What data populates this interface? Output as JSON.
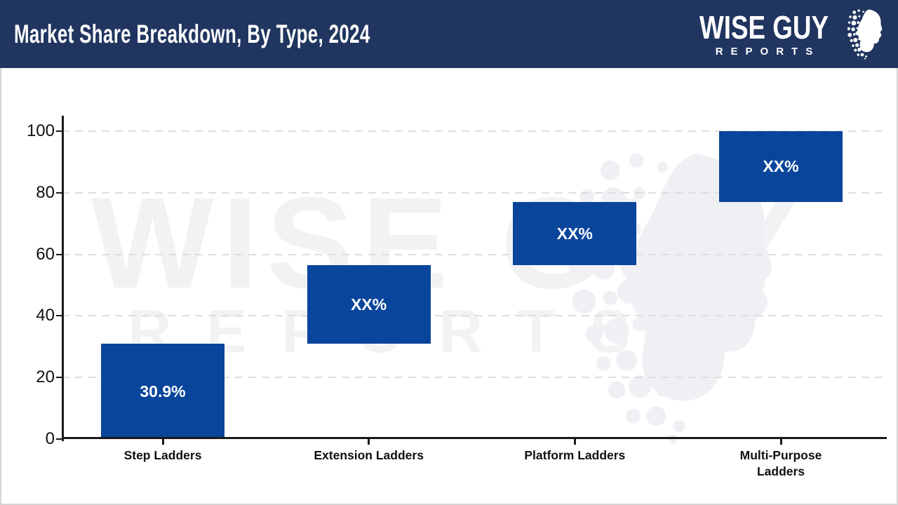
{
  "header": {
    "title": "Market Share Breakdown, By Type, 2024",
    "logo": {
      "line1": "WISE GUY",
      "line2": "REPORTS"
    }
  },
  "watermark": {
    "line1": "WISE GUY",
    "line2": "REPORTS"
  },
  "chart_data": {
    "type": "bar",
    "subtype": "waterfall",
    "title": "Market Share Breakdown, By Type, 2024",
    "categories": [
      "Step Ladders",
      "Extension Ladders",
      "Platform Ladders",
      "Multi-Purpose Ladders"
    ],
    "segments": [
      {
        "category": "Step Ladders",
        "start": 0,
        "end": 30.9,
        "value": 30.9,
        "label": "30.9%"
      },
      {
        "category": "Extension Ladders",
        "start": 30.9,
        "end": 56.4,
        "value": 25.5,
        "label": "XX%"
      },
      {
        "category": "Platform Ladders",
        "start": 56.4,
        "end": 76.9,
        "value": 20.5,
        "label": "XX%"
      },
      {
        "category": "Multi-Purpose Ladders",
        "start": 76.9,
        "end": 100,
        "value": 23.1,
        "label": "XX%"
      }
    ],
    "xlabel": "",
    "ylabel": "",
    "yticks": [
      0,
      20,
      40,
      60,
      80,
      100
    ],
    "ylim": [
      0,
      105
    ],
    "grid": "horizontal-dashed",
    "legend": "none",
    "colors": {
      "bar": "#0a459c",
      "bar_label": "#ffffff",
      "axis": "#1a1a1a",
      "gridline": "#dedede",
      "header_background": "#20355f",
      "header_text": "#ffffff"
    }
  }
}
